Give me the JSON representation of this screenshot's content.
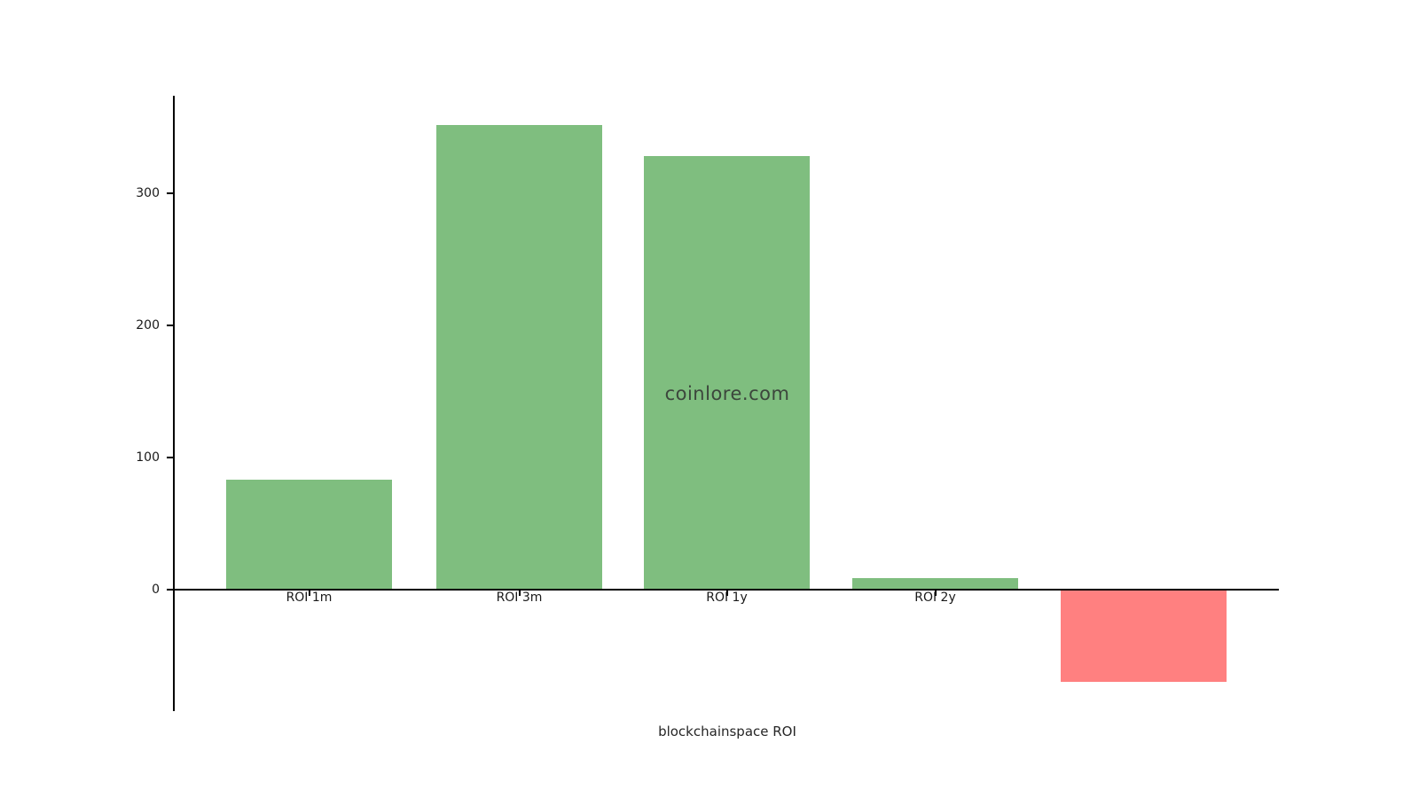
{
  "chart_data": {
    "type": "bar",
    "title": "",
    "xlabel": "blockchainspace ROI",
    "ylabel": "",
    "categories": [
      "ROI 1m",
      "ROI 3m",
      "ROI 1y",
      "ROI 2y",
      ""
    ],
    "values": [
      83,
      352,
      328,
      9,
      -69
    ],
    "yticks": [
      0,
      100,
      200,
      300
    ],
    "ylim": [
      -92,
      374
    ],
    "grid": false,
    "legend": "none",
    "bar_color_positive": "#7fbe7f",
    "bar_color_negative": "#ff8080",
    "axis_color": "#000000",
    "tick_label_color": "#1a1a1a",
    "watermark": {
      "text": "coinlore.com",
      "color": "#3c463c"
    }
  }
}
